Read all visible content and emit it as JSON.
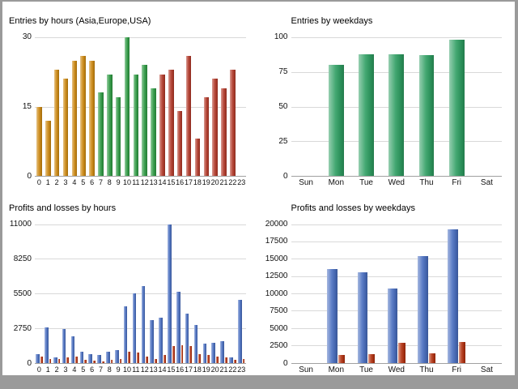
{
  "colors": {
    "asia": "#cc8811",
    "europe": "#2f9a44",
    "usa": "#b23a2a",
    "weekday": "#2e9e62",
    "profit": "#4a6fc0",
    "loss": "#b23110"
  },
  "chart_data": [
    {
      "type": "bar",
      "title": "Entries by hours (Asia,Europe,USA)",
      "categories": [
        "0",
        "1",
        "2",
        "3",
        "4",
        "5",
        "6",
        "7",
        "8",
        "9",
        "10",
        "11",
        "12",
        "13",
        "14",
        "15",
        "16",
        "17",
        "18",
        "19",
        "20",
        "21",
        "22",
        "23"
      ],
      "values": [
        15,
        12,
        23,
        21,
        25,
        26,
        25,
        18,
        22,
        17,
        30,
        22,
        24,
        19,
        22,
        23,
        14,
        26,
        8,
        17,
        21,
        19,
        23,
        0
      ],
      "bar_colors": [
        "asia",
        "asia",
        "asia",
        "asia",
        "asia",
        "asia",
        "asia",
        "europe",
        "europe",
        "europe",
        "europe",
        "europe",
        "europe",
        "europe",
        "usa",
        "usa",
        "usa",
        "usa",
        "usa",
        "usa",
        "usa",
        "usa",
        "usa",
        "usa"
      ],
      "yticks": [
        0,
        15,
        30
      ],
      "ylim": [
        0,
        30
      ],
      "grid": "horizontal",
      "legend": "none"
    },
    {
      "type": "bar",
      "title": "Entries by weekdays",
      "categories": [
        "Sun",
        "Mon",
        "Tue",
        "Wed",
        "Thu",
        "Fri",
        "Sat"
      ],
      "values": [
        0,
        80,
        88,
        88,
        87,
        98,
        0
      ],
      "color": "weekday",
      "yticks": [
        0,
        25,
        50,
        75,
        100
      ],
      "ylim": [
        0,
        100
      ],
      "grid": "horizontal",
      "legend": "none"
    },
    {
      "type": "bar",
      "title": "Profits and losses by hours",
      "categories": [
        "0",
        "1",
        "2",
        "3",
        "4",
        "5",
        "6",
        "7",
        "8",
        "9",
        "10",
        "11",
        "12",
        "13",
        "14",
        "15",
        "16",
        "17",
        "18",
        "19",
        "20",
        "21",
        "22",
        "23"
      ],
      "series": [
        {
          "name": "profit",
          "color": "profit",
          "values": [
            700,
            2800,
            400,
            2700,
            2100,
            900,
            700,
            600,
            900,
            1000,
            4500,
            5500,
            6100,
            3400,
            3600,
            11000,
            5600,
            3900,
            3000,
            1500,
            1600,
            1700,
            400,
            5000
          ]
        },
        {
          "name": "loss",
          "color": "loss",
          "values": [
            500,
            300,
            300,
            400,
            500,
            200,
            150,
            100,
            200,
            300,
            900,
            800,
            500,
            300,
            600,
            1300,
            1400,
            1300,
            700,
            600,
            500,
            400,
            200,
            300
          ]
        }
      ],
      "yticks": [
        0,
        2750,
        5500,
        8250,
        11000
      ],
      "ylim": [
        0,
        11000
      ],
      "grid": "horizontal",
      "legend": "none"
    },
    {
      "type": "bar",
      "title": "Profits and losses by weekdays",
      "categories": [
        "Sun",
        "Mon",
        "Tue",
        "Wed",
        "Thu",
        "Fri",
        "Sat"
      ],
      "series": [
        {
          "name": "profit",
          "color": "profit",
          "values": [
            0,
            13500,
            13000,
            10700,
            15400,
            19300,
            0
          ]
        },
        {
          "name": "loss",
          "color": "loss",
          "values": [
            0,
            1100,
            1200,
            2900,
            1300,
            3000,
            0
          ]
        }
      ],
      "yticks": [
        0,
        2500,
        5000,
        7500,
        10000,
        12500,
        15000,
        17500,
        20000
      ],
      "ylim": [
        0,
        20000
      ],
      "grid": "horizontal",
      "legend": "none"
    }
  ]
}
